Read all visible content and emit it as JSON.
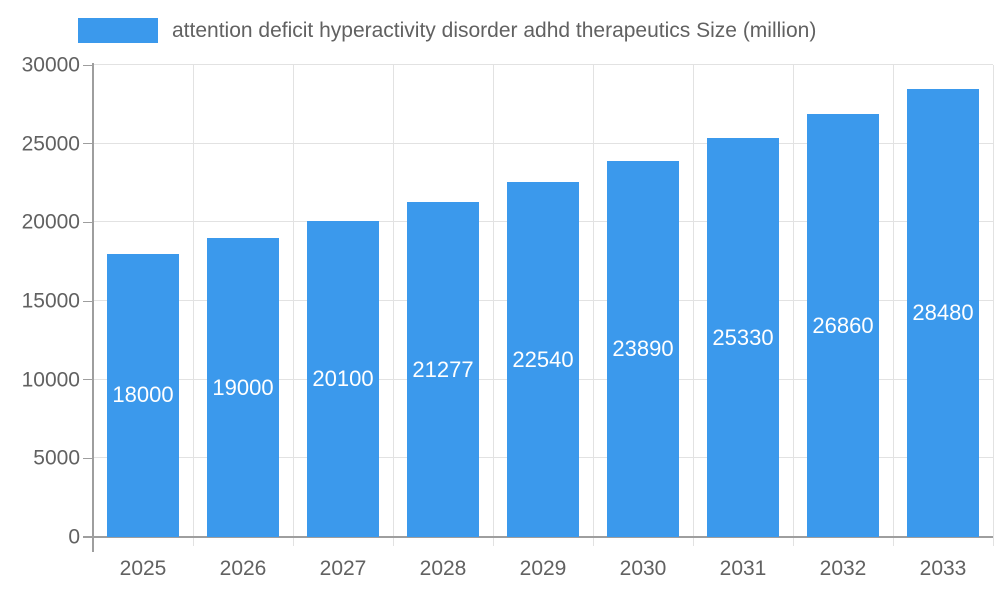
{
  "chart_data": {
    "type": "bar",
    "title": "",
    "legend": {
      "label": "attention deficit hyperactivity disorder adhd therapeutics Size (million)",
      "position": "top-left"
    },
    "categories": [
      "2025",
      "2026",
      "2027",
      "2028",
      "2029",
      "2030",
      "2031",
      "2032",
      "2033"
    ],
    "values": [
      18000,
      19000,
      20100,
      21277,
      22540,
      23890,
      25330,
      26860,
      28480
    ],
    "xlabel": "",
    "ylabel": "",
    "ylim": [
      0,
      30000
    ],
    "yticks": [
      0,
      5000,
      10000,
      15000,
      20000,
      25000,
      30000
    ],
    "grid": true,
    "bar_label_position": "inside-center",
    "colors": {
      "bar": "#3B99EC",
      "bar_label": "#FFFFFF",
      "grid": "#E2E2E2",
      "axis_line": "#9E9E9E",
      "axis_text": "#616161",
      "background": "#FFFFFF"
    }
  }
}
